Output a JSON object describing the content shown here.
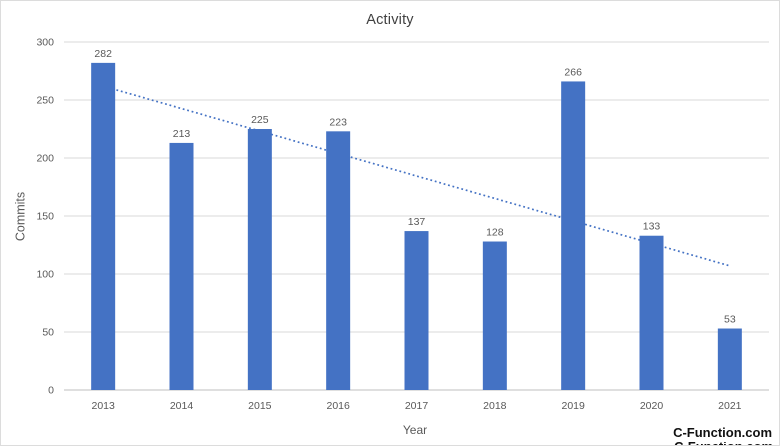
{
  "chart_data": {
    "type": "bar",
    "title": "Activity",
    "xlabel": "Year",
    "ylabel": "Commits",
    "categories": [
      "2013",
      "2014",
      "2015",
      "2016",
      "2017",
      "2018",
      "2019",
      "2020",
      "2021"
    ],
    "values": [
      282,
      213,
      225,
      223,
      137,
      128,
      266,
      133,
      53
    ],
    "ylim": [
      0,
      300
    ],
    "yticks": [
      0,
      50,
      100,
      150,
      200,
      250,
      300
    ],
    "grid": true,
    "legend_position": "none",
    "data_labels": true,
    "bar_color": "#4472C4",
    "gridline_color": "#D9D9D9",
    "axis_line_color": "#BFBFBF",
    "tick_label_color": "#595959",
    "data_label_color": "#595959",
    "title_color": "#404040",
    "trendline": {
      "type": "linear",
      "style": "dotted",
      "color": "#4472C4",
      "start_value": 262,
      "end_value": 107
    }
  },
  "watermark": {
    "label": "C-Function.com"
  }
}
